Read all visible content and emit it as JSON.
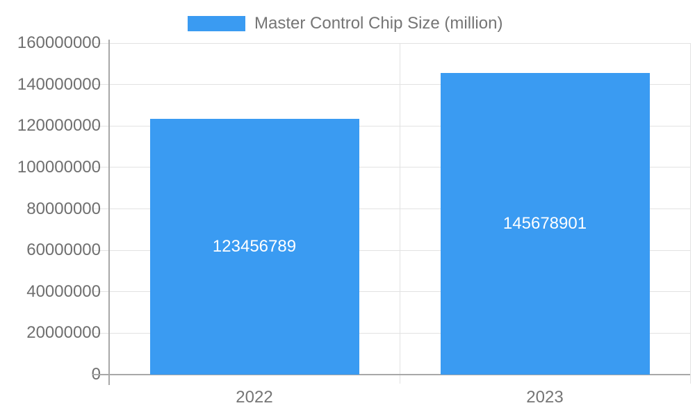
{
  "legend": {
    "label": "Master Control Chip Size (million)",
    "swatch_color": "#3a9bf2"
  },
  "chart_data": {
    "type": "bar",
    "title": "",
    "xlabel": "",
    "ylabel": "",
    "categories": [
      "2022",
      "2023"
    ],
    "series": [
      {
        "name": "Master Control Chip Size (million)",
        "values": [
          123456789,
          145678901
        ],
        "color": "#3a9bf2"
      }
    ],
    "data_labels": [
      "123456789",
      "145678901"
    ],
    "data_label_color": "#ffffff",
    "ylim": [
      0,
      160000000
    ],
    "ytick_interval": 20000000,
    "ytick_labels": [
      "0",
      "20000000",
      "40000000",
      "60000000",
      "80000000",
      "100000000",
      "120000000",
      "140000000",
      "160000000"
    ],
    "grid": true,
    "legend_position": "top",
    "colors": {
      "bar": "#3a9bf2",
      "grid": "#e2e2e2",
      "axis": "#a8a8a8",
      "axis_text": "#6f6f6f"
    }
  }
}
